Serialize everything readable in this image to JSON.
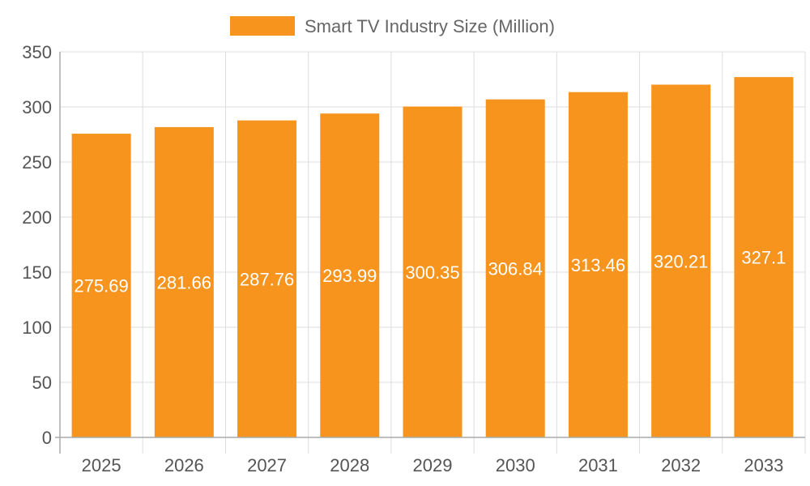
{
  "chart_data": {
    "type": "bar",
    "categories": [
      "2025",
      "2026",
      "2027",
      "2028",
      "2029",
      "2030",
      "2031",
      "2032",
      "2033"
    ],
    "series": [
      {
        "name": "Smart TV Industry Size (Million)",
        "values": [
          275.69,
          281.66,
          287.76,
          293.99,
          300.35,
          306.84,
          313.46,
          320.21,
          327.1
        ],
        "color": "#f7941d"
      }
    ],
    "data_labels": [
      "275.69",
      "281.66",
      "287.76",
      "293.99",
      "300.35",
      "306.84",
      "313.46",
      "320.21",
      "327.1"
    ],
    "y_ticks": [
      "0",
      "50",
      "100",
      "150",
      "200",
      "250",
      "300",
      "350"
    ],
    "ylim": [
      0,
      350
    ],
    "grid": true,
    "legend_position": "top-center"
  }
}
